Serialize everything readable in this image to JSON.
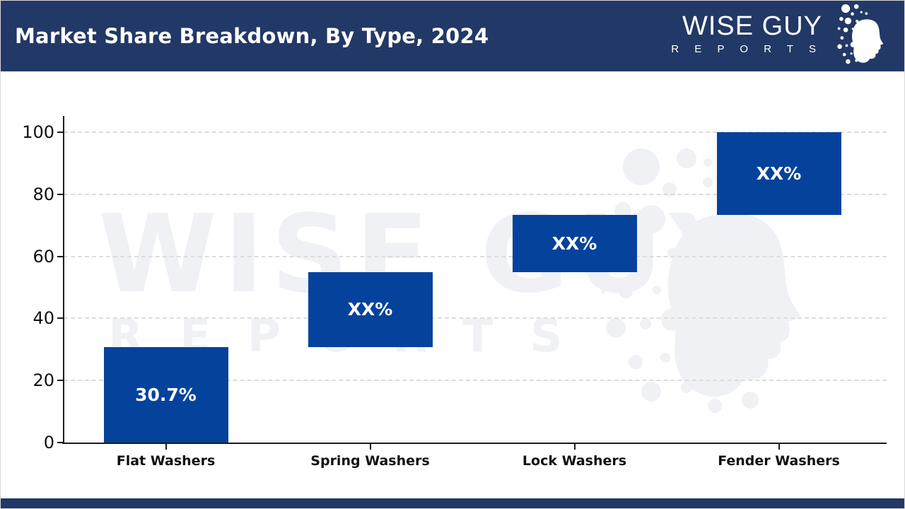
{
  "header": {
    "title": "Market Share Breakdown, By Type, 2024",
    "logo_line1": "WISE GUY",
    "logo_line2": "R E P O R T S",
    "bg_color": "#223866"
  },
  "watermark": {
    "line1": "WISE GUY",
    "line2": "REPORTS"
  },
  "chart_data": {
    "type": "bar",
    "subtype": "waterfall",
    "title": "Market Share Breakdown, By Type, 2024",
    "categories": [
      "Flat Washers",
      "Spring Washers",
      "Lock Washers",
      "Fender Washers"
    ],
    "series": [
      {
        "name": "Market Share %",
        "segments": [
          {
            "category": "Flat Washers",
            "start": 0,
            "end": 30.7,
            "label": "30.7%"
          },
          {
            "category": "Spring Washers",
            "start": 30.7,
            "end": 55.0,
            "label": "XX%"
          },
          {
            "category": "Lock Washers",
            "start": 55.0,
            "end": 73.4,
            "label": "XX%"
          },
          {
            "category": "Fender Washers",
            "start": 73.4,
            "end": 100.0,
            "label": "XX%"
          }
        ]
      }
    ],
    "bar_color": "#05429C",
    "ylim": [
      0,
      100
    ],
    "yticks": [
      0,
      20,
      40,
      60,
      80,
      100
    ],
    "grid": "horizontal-dashed",
    "legend": "none",
    "xlabel": "",
    "ylabel": ""
  }
}
